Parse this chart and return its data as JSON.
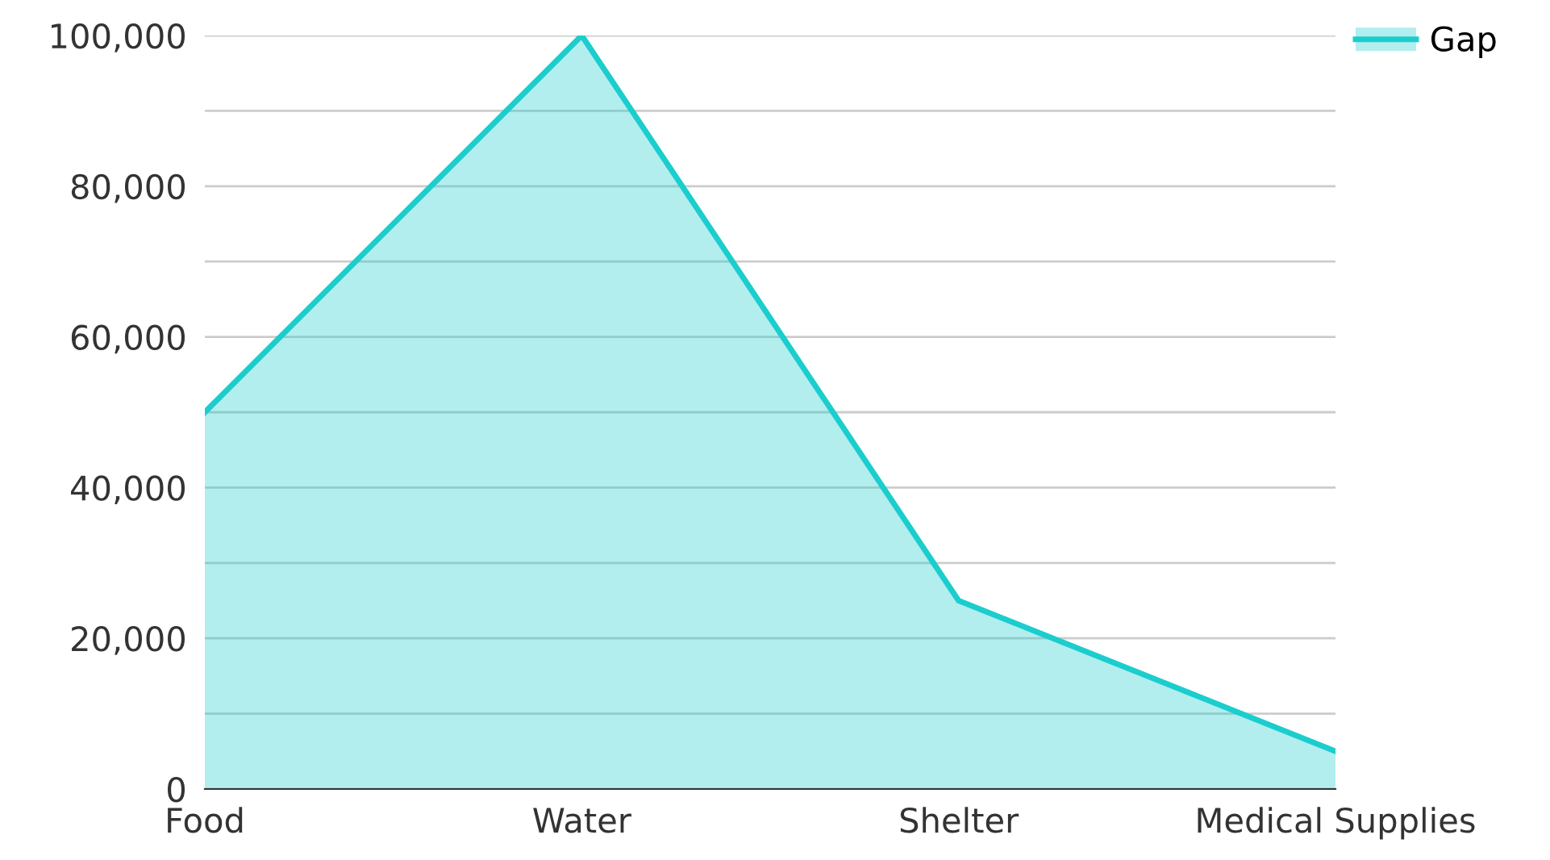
{
  "chart_data": {
    "type": "area",
    "categories": [
      "Food",
      "Water",
      "Shelter",
      "Medical Supplies"
    ],
    "series": [
      {
        "name": "Gap",
        "color": "#1ccdcd",
        "values": [
          50000,
          100000,
          25000,
          5000
        ]
      }
    ],
    "ylim": [
      0,
      100000
    ],
    "yticks": [
      0,
      {
        "value": 10000,
        "label": null
      },
      {
        "value": 20000,
        "label": "20,000"
      },
      {
        "value": 30000,
        "label": null
      },
      {
        "value": 40000,
        "label": "40,000"
      },
      {
        "value": 50000,
        "label": null
      },
      {
        "value": 60000,
        "label": "60,000"
      },
      {
        "value": 70000,
        "label": null
      },
      {
        "value": 80000,
        "label": "80,000"
      },
      {
        "value": 90000,
        "label": null
      },
      {
        "value": 100000,
        "label": "100,000"
      }
    ],
    "grid": "y",
    "legend": "top right"
  }
}
